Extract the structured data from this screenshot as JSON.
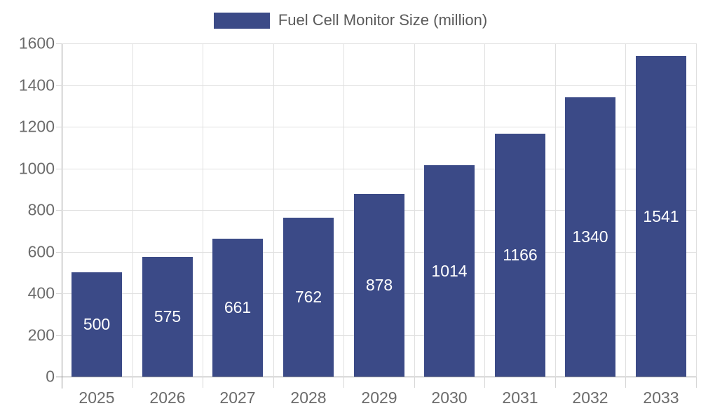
{
  "chart_data": {
    "type": "bar",
    "title": "",
    "legend": "Fuel Cell Monitor Size (million)",
    "categories": [
      "2025",
      "2026",
      "2027",
      "2028",
      "2029",
      "2030",
      "2031",
      "2032",
      "2033"
    ],
    "values": [
      500,
      575,
      661,
      762,
      878,
      1014,
      1166,
      1340,
      1541
    ],
    "xlabel": "",
    "ylabel": "",
    "ylim": [
      0,
      1600
    ],
    "ytick_step": 200,
    "grid": true,
    "legend_position": "top-center",
    "value_labels": "inside-center",
    "colors": {
      "bar": "#3B4A87",
      "value_label": "#ffffff",
      "grid": "#e0e0e0",
      "axis": "#969696",
      "tick": "#d6d6d6",
      "tick_label": "#6b6b6b",
      "legend_text": "#5a5a5a",
      "background": "#ffffff"
    }
  }
}
